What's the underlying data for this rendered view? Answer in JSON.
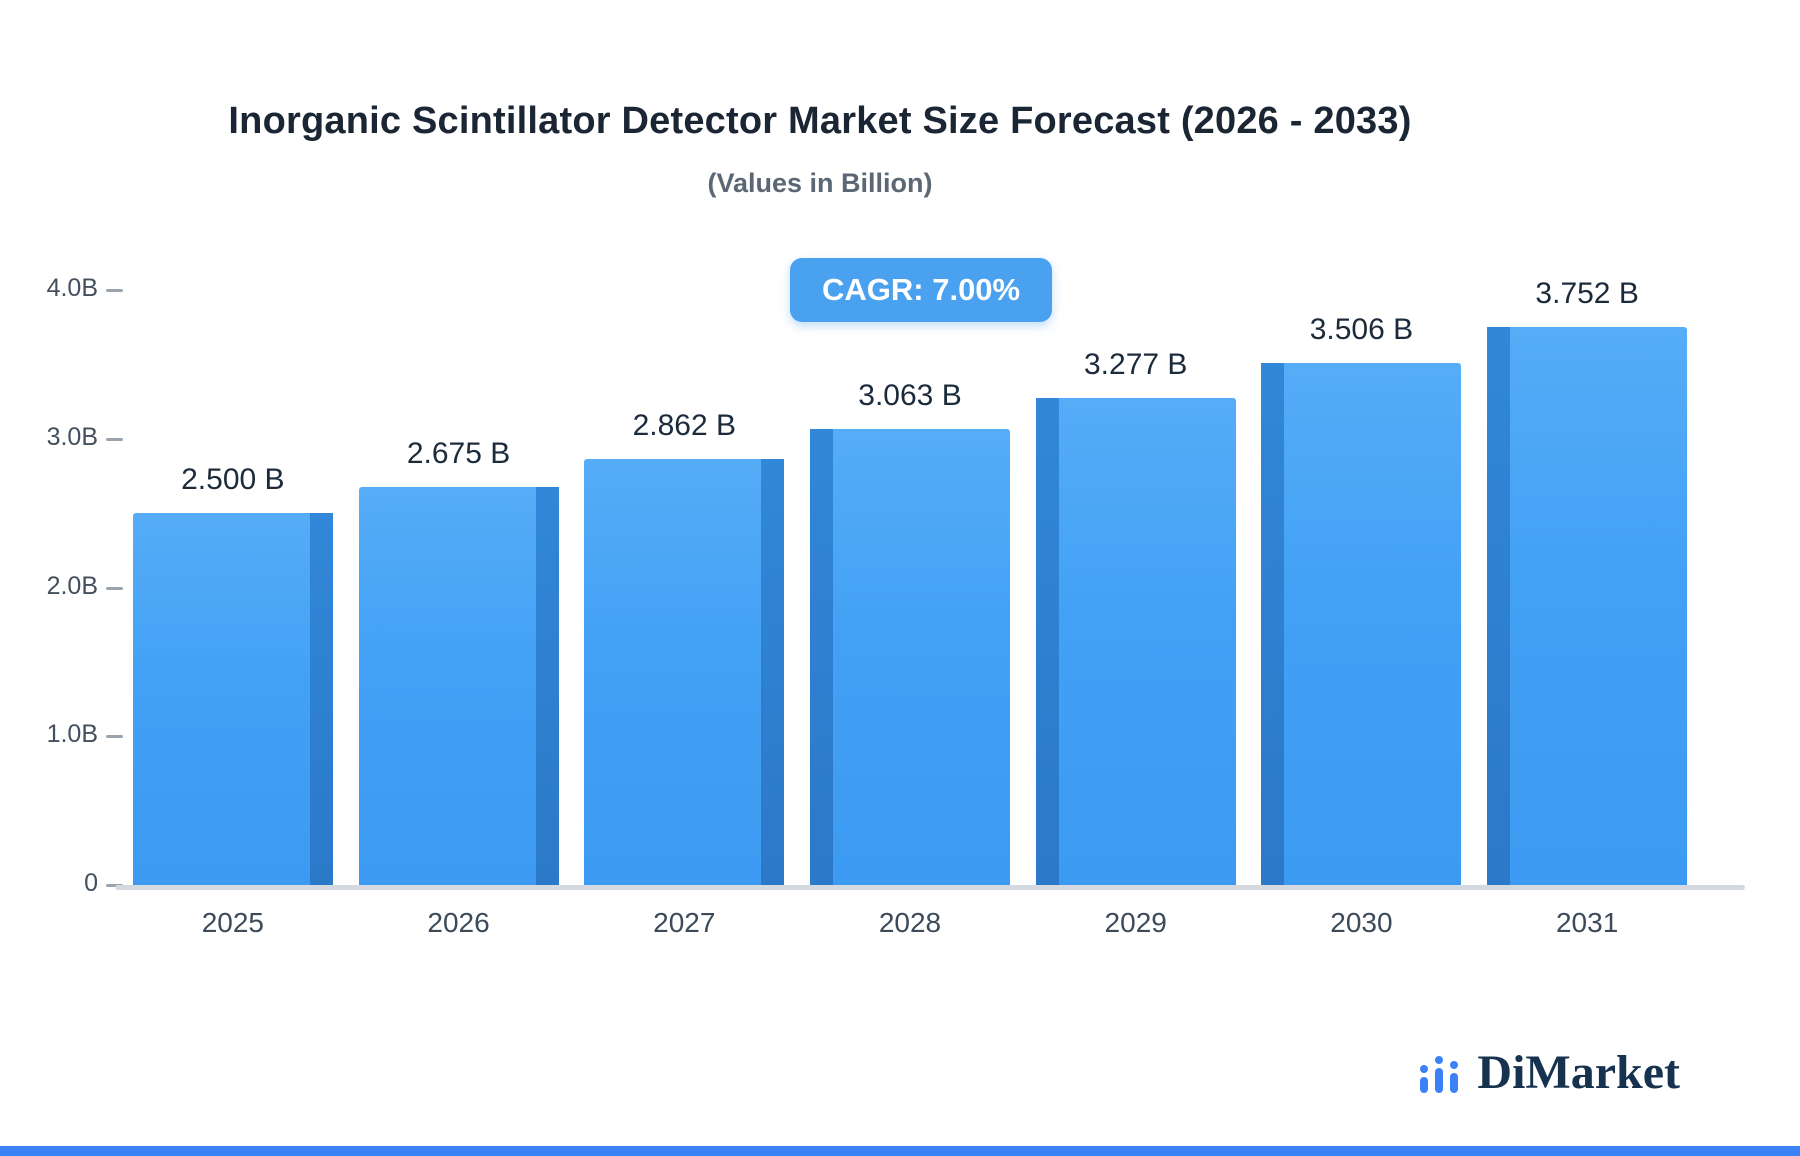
{
  "chart_data": {
    "type": "bar",
    "title": "Inorganic Scintillator Detector Market Size Forecast (2026 - 2033)",
    "subtitle": "(Values in Billion)",
    "cagr_label": "CAGR: 7.00%",
    "categories": [
      "2025",
      "2026",
      "2027",
      "2028",
      "2029",
      "2030",
      "2031"
    ],
    "values": [
      2.5,
      2.675,
      2.862,
      3.063,
      3.277,
      3.506,
      3.752
    ],
    "value_labels": [
      "2.500 B",
      "2.675 B",
      "2.862 B",
      "3.063 B",
      "3.277 B",
      "3.506 B",
      "3.752 B"
    ],
    "xlabel": "",
    "ylabel": "",
    "ylim": [
      0,
      4.0
    ],
    "y_ticks": [
      {
        "value": 0,
        "label": "0"
      },
      {
        "value": 1.0,
        "label": "1.0B"
      },
      {
        "value": 2.0,
        "label": "2.0B"
      },
      {
        "value": 3.0,
        "label": "3.0B"
      },
      {
        "value": 4.0,
        "label": "4.0B"
      }
    ],
    "grid": false,
    "legend": "none",
    "colors": {
      "bar_main": "#42A1F5",
      "bar_side": "#2B79C8",
      "badge_bg": "#4AA1EF",
      "accent_strip": "#3B82F6"
    }
  },
  "logo": {
    "text": "DiMarket",
    "icon": "bar-chart-icon"
  }
}
